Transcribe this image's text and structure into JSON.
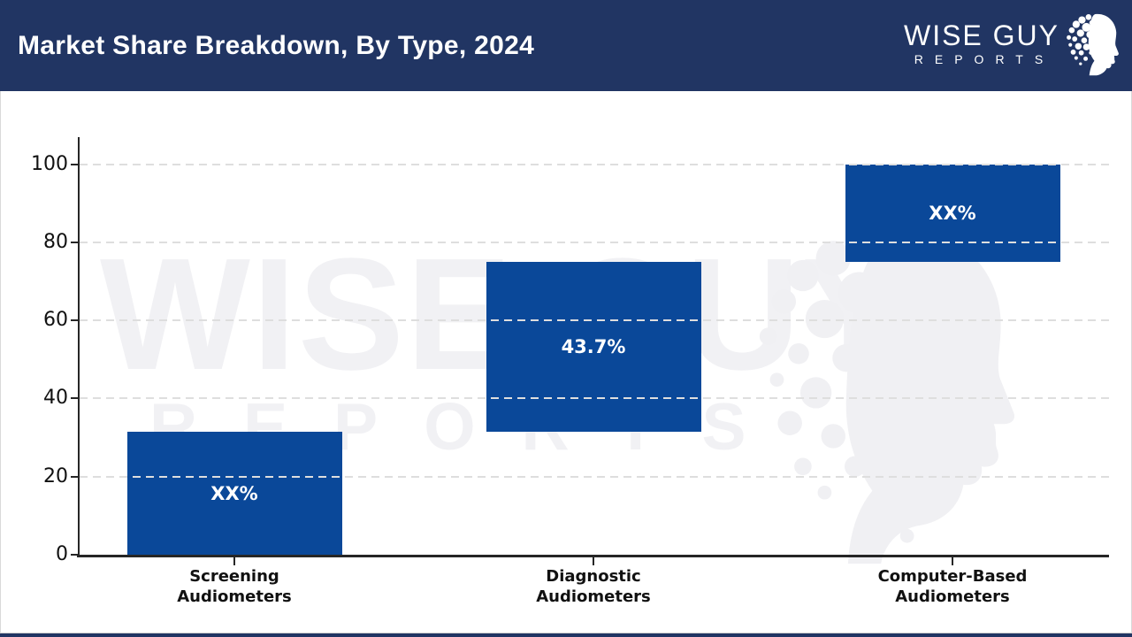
{
  "header": {
    "title": "Market Share Breakdown, By Type, 2024",
    "bg_color": "#213563",
    "text_color": "#ffffff",
    "logo": {
      "line1": "WISE GUY",
      "line2": "REPORTS"
    }
  },
  "watermark": {
    "line1": "WISE GUY",
    "line2": "REPORTS"
  },
  "chart_data": {
    "type": "bar",
    "variant": "waterfall",
    "title": "Market Share Breakdown, By Type, 2024",
    "categories": [
      [
        "Screening",
        "Audiometers"
      ],
      [
        "Diagnostic",
        "Audiometers"
      ],
      [
        "Computer-Based",
        "Audiometers"
      ]
    ],
    "segments": [
      {
        "category": "Screening Audiometers",
        "start": 0,
        "end": 31.4,
        "label": "XX%"
      },
      {
        "category": "Diagnostic Audiometers",
        "start": 31.4,
        "end": 75.1,
        "label": "43.7%"
      },
      {
        "category": "Computer-Based Audiometers",
        "start": 75.1,
        "end": 100,
        "label": "XX%"
      }
    ],
    "yticks": [
      0,
      20,
      40,
      60,
      80,
      100
    ],
    "ylim": [
      0,
      107
    ],
    "grid": true,
    "legend": false,
    "gridline_style": "dashed",
    "bar_color": "#0a4899",
    "bar_label_color": "#ffffff",
    "gridline_color": "#dedede",
    "axis_color": "#262626",
    "tick_label_color": "#111111"
  }
}
